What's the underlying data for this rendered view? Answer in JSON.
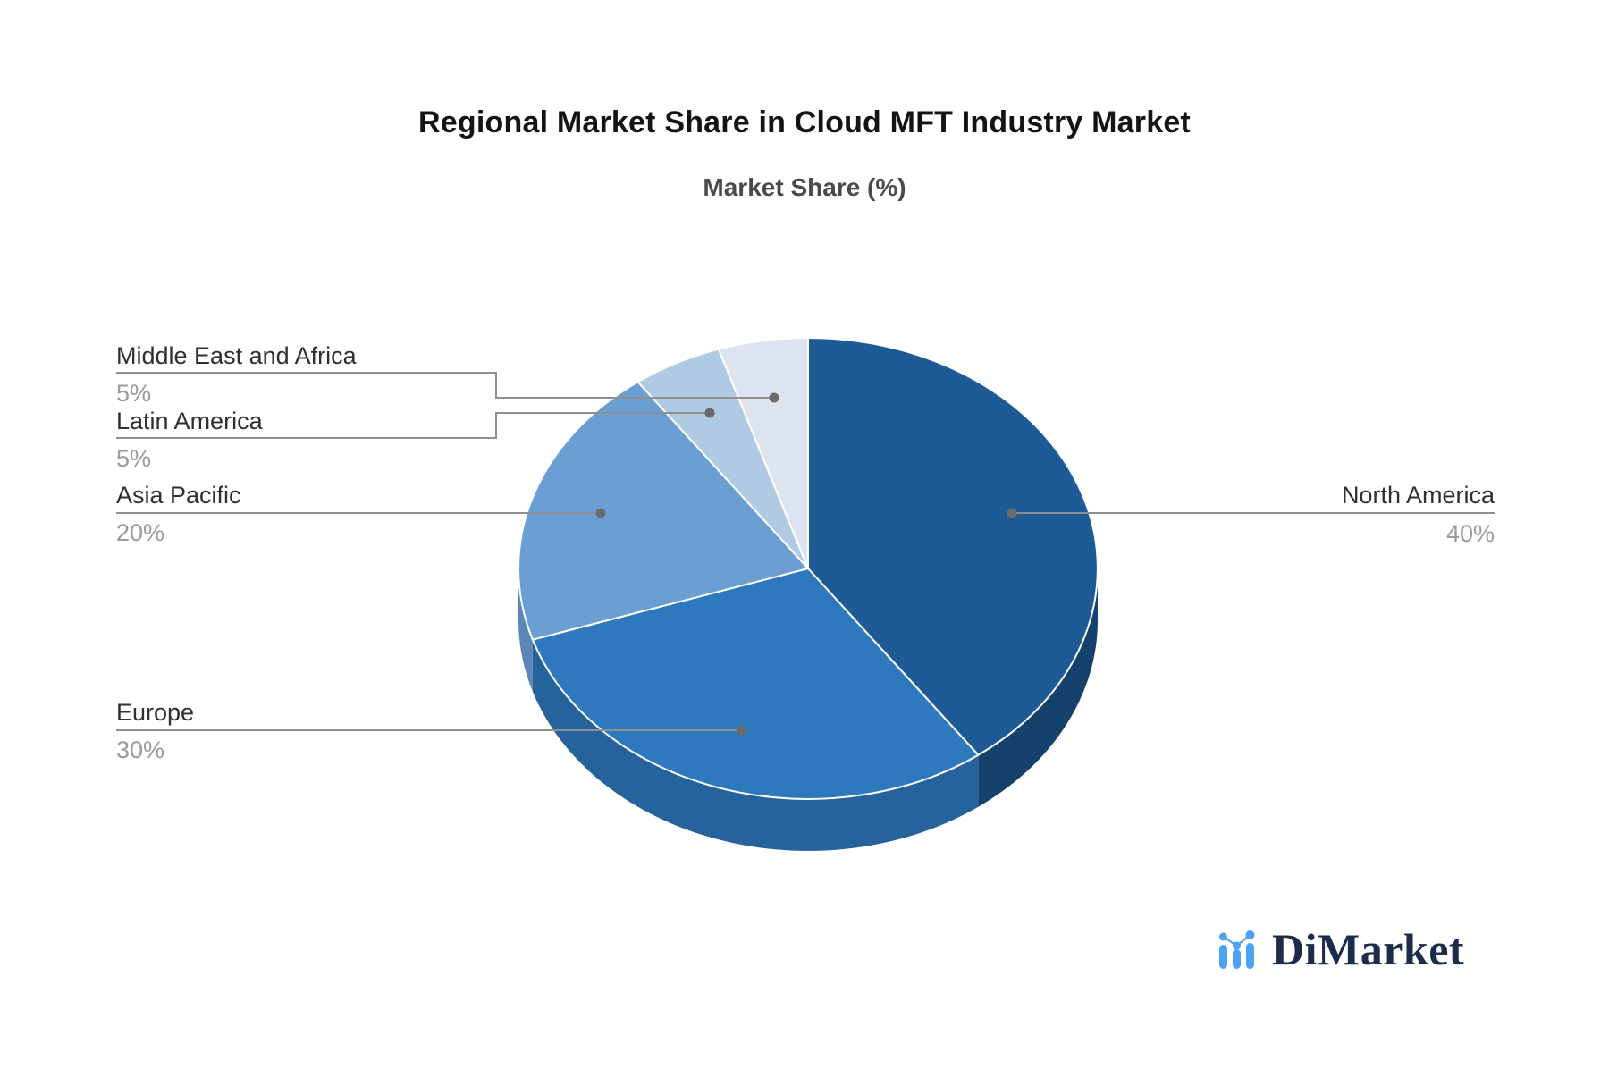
{
  "chart_data": {
    "type": "pie",
    "title": "Regional Market Share in Cloud MFT Industry Market",
    "subtitle": "Market Share (%)",
    "style": "3d-pie",
    "start_angle_deg": 0,
    "direction": "clockwise",
    "label_style": "callout-leader-lines",
    "segments": [
      {
        "label": "North America",
        "value": 40,
        "pct_label": "40%",
        "color": "#1d5a96",
        "side_color": "#15416d"
      },
      {
        "label": "Europe",
        "value": 30,
        "pct_label": "30%",
        "color": "#2e78bd",
        "side_color": "#26629c"
      },
      {
        "label": "Asia Pacific",
        "value": 20,
        "pct_label": "20%",
        "color": "#6b9ed3",
        "side_color": "#5a87b6"
      },
      {
        "label": "Latin America",
        "value": 5,
        "pct_label": "5%",
        "color": "#b1cae4",
        "side_color": "#9db8d6"
      },
      {
        "label": "Middle East and Africa",
        "value": 5,
        "pct_label": "5%",
        "color": "#dde4ef",
        "side_color": "#c8d2e2"
      }
    ]
  },
  "branding": {
    "logo_text": "DiMarket",
    "logo_icon": "bar-chart-with-trend-dots",
    "icon_color": "#4da3f3",
    "text_color": "#1c2b4a"
  }
}
